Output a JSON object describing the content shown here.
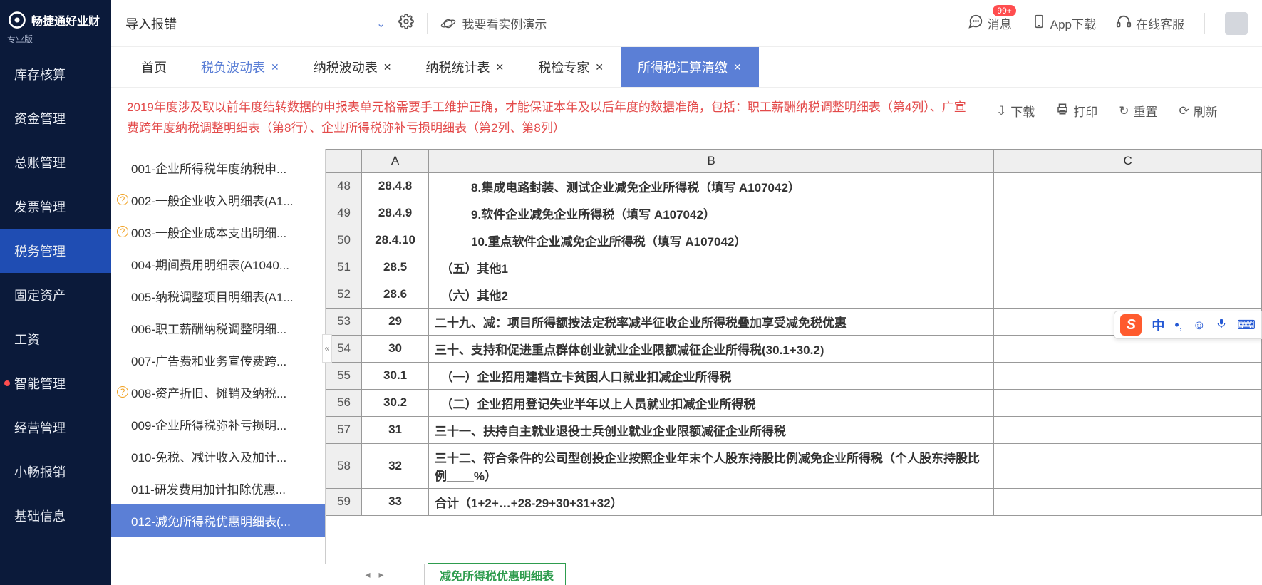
{
  "logo": {
    "text": "畅捷通好业财",
    "sub": "专业版"
  },
  "sidebar": {
    "items": [
      {
        "label": "库存核算",
        "active": false,
        "dot": false
      },
      {
        "label": "资金管理",
        "active": false,
        "dot": false
      },
      {
        "label": "总账管理",
        "active": false,
        "dot": false
      },
      {
        "label": "发票管理",
        "active": false,
        "dot": false
      },
      {
        "label": "税务管理",
        "active": true,
        "dot": false
      },
      {
        "label": "固定资产",
        "active": false,
        "dot": false
      },
      {
        "label": "工资",
        "active": false,
        "dot": false
      },
      {
        "label": "智能管理",
        "active": false,
        "dot": true
      },
      {
        "label": "经营管理",
        "active": false,
        "dot": false
      },
      {
        "label": "小畅报销",
        "active": false,
        "dot": false
      },
      {
        "label": "基础信息",
        "active": false,
        "dot": false
      }
    ]
  },
  "topbar": {
    "import_error": "导入报错",
    "demo": "我要看实例演示",
    "msg": "消息",
    "badge": "99+",
    "app": "App下载",
    "service": "在线客服"
  },
  "tabs": [
    {
      "label": "首页",
      "closable": false,
      "style": "plain"
    },
    {
      "label": "税负波动表",
      "closable": true,
      "style": "link"
    },
    {
      "label": "纳税波动表",
      "closable": true,
      "style": "plain"
    },
    {
      "label": "纳税统计表",
      "closable": true,
      "style": "plain"
    },
    {
      "label": "税检专家",
      "closable": true,
      "style": "plain"
    },
    {
      "label": "所得税汇算清缴",
      "closable": true,
      "style": "active"
    }
  ],
  "notice": "2019年度涉及取以前年度结转数据的申报表单元格需要手工维护正确，才能保证本年及以后年度的数据准确，包括：职工薪酬纳税调整明细表（第4列）、广宣费跨年度纳税调整明细表（第8行）、企业所得税弥补亏损明细表（第2列、第8列）",
  "toolbtns": {
    "download": "下载",
    "print": "打印",
    "reset": "重置",
    "refresh": "刷新"
  },
  "formlist": [
    {
      "label": "001-企业所得税年度纳税申...",
      "q": false,
      "active": false
    },
    {
      "label": "002-一般企业收入明细表(A1...",
      "q": true,
      "active": false
    },
    {
      "label": "003-一般企业成本支出明细...",
      "q": true,
      "active": false
    },
    {
      "label": "004-期间费用明细表(A1040...",
      "q": false,
      "active": false
    },
    {
      "label": "005-纳税调整项目明细表(A1...",
      "q": false,
      "active": false
    },
    {
      "label": "006-职工薪酬纳税调整明细...",
      "q": false,
      "active": false
    },
    {
      "label": "007-广告费和业务宣传费跨...",
      "q": false,
      "active": false
    },
    {
      "label": "008-资产折旧、摊销及纳税...",
      "q": true,
      "active": false
    },
    {
      "label": "009-企业所得税弥补亏损明...",
      "q": false,
      "active": false
    },
    {
      "label": "010-免税、减计收入及加计...",
      "q": false,
      "active": false
    },
    {
      "label": "011-研发费用加计扣除优惠...",
      "q": false,
      "active": false
    },
    {
      "label": "012-减免所得税优惠明细表(...",
      "q": false,
      "active": true
    }
  ],
  "sheet": {
    "cols": [
      "A",
      "B",
      "C"
    ],
    "rows": [
      {
        "n": "48",
        "a": "28.4.8",
        "b": "　　　8.集成电路封装、测试企业减免企业所得税（填写 A107042）"
      },
      {
        "n": "49",
        "a": "28.4.9",
        "b": "　　　9.软件企业减免企业所得税（填写 A107042）"
      },
      {
        "n": "50",
        "a": "28.4.10",
        "b": "　　　10.重点软件企业减免企业所得税（填写 A107042）"
      },
      {
        "n": "51",
        "a": "28.5",
        "b": "　（五）其他1"
      },
      {
        "n": "52",
        "a": "28.6",
        "b": "　（六）其他2"
      },
      {
        "n": "53",
        "a": "29",
        "b": "二十九、减：项目所得额按法定税率减半征收企业所得税叠加享受减免税优惠"
      },
      {
        "n": "54",
        "a": "30",
        "b": "三十、支持和促进重点群体创业就业企业限额减征企业所得税(30.1+30.2)"
      },
      {
        "n": "55",
        "a": "30.1",
        "b": "　（一）企业招用建档立卡贫困人口就业扣减企业所得税"
      },
      {
        "n": "56",
        "a": "30.2",
        "b": "　（二）企业招用登记失业半年以上人员就业扣减企业所得税"
      },
      {
        "n": "57",
        "a": "31",
        "b": "三十一、扶持自主就业退役士兵创业就业企业限额减征企业所得税"
      },
      {
        "n": "58",
        "a": "32",
        "b": "三十二、符合条件的公司型创投企业按照企业年末个人股东持股比例减免企业所得税（个人股东持股比例____%）"
      },
      {
        "n": "59",
        "a": "33",
        "b": "合计（1+2+…+28-29+30+31+32）"
      }
    ],
    "tab_label": "减免所得税优惠明细表"
  },
  "ime": {
    "cn": "中"
  }
}
